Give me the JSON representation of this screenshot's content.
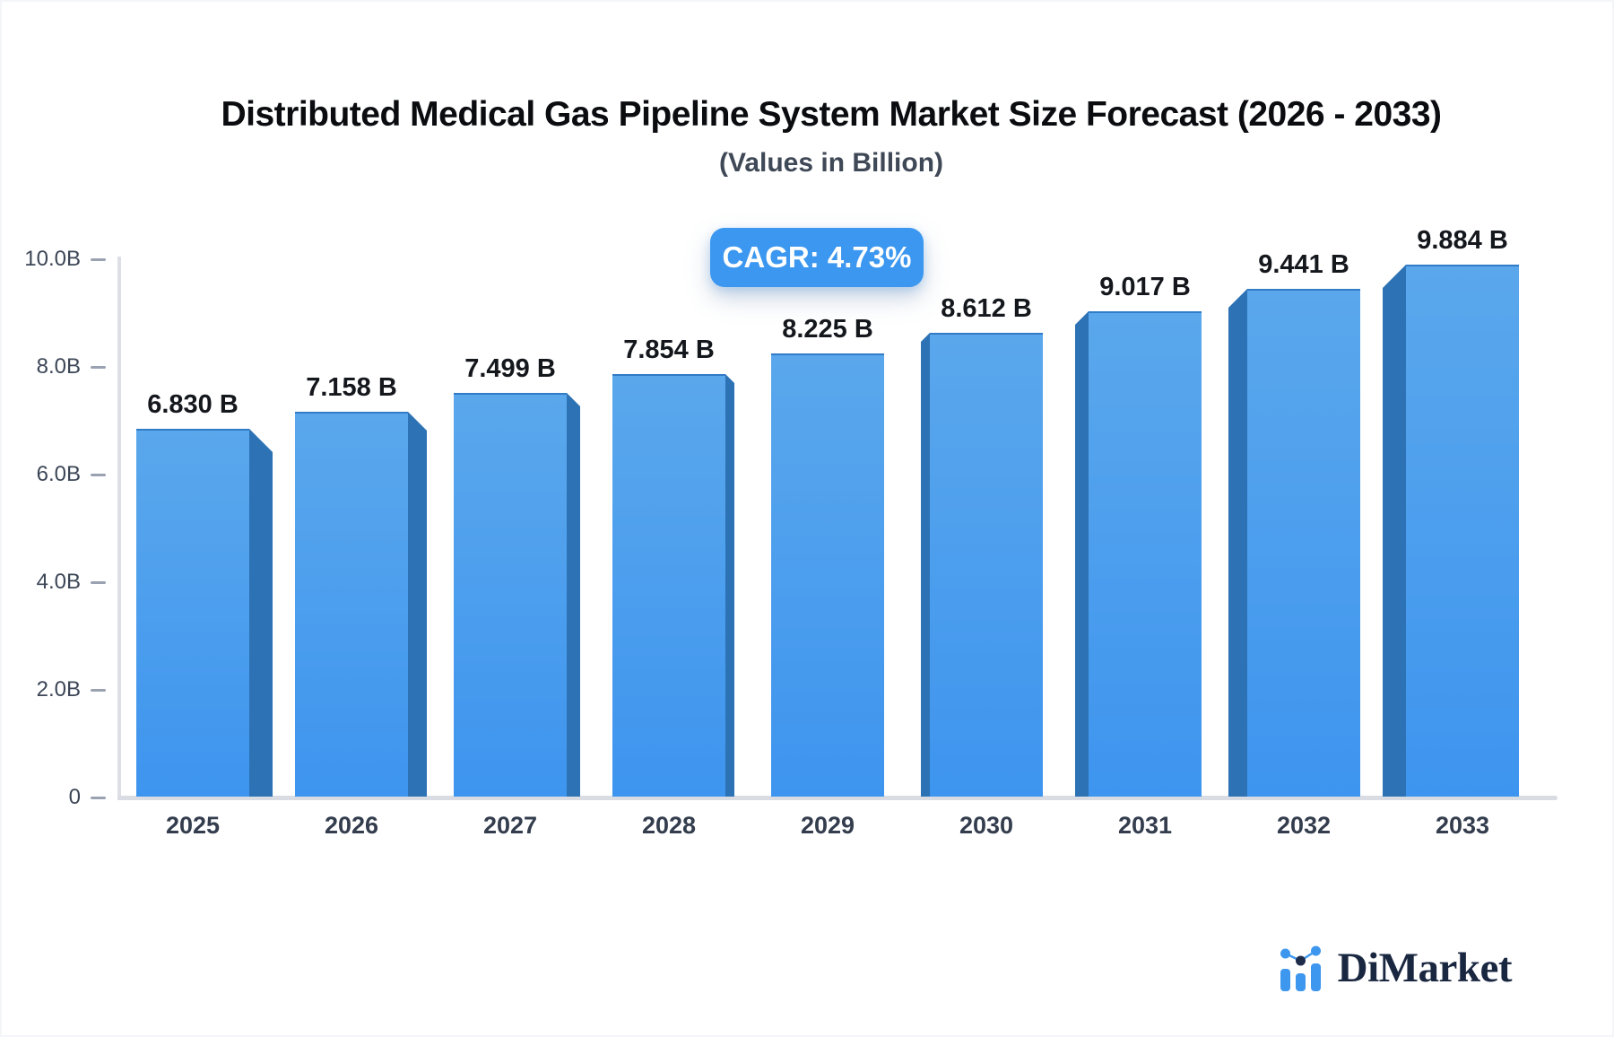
{
  "header": {
    "title": "Distributed Medical Gas Pipeline System Market Size Forecast (2026 - 2033)",
    "subtitle": "(Values in Billion)"
  },
  "badge": {
    "label": "CAGR: 4.73%"
  },
  "chart_data": {
    "type": "bar",
    "title": "Distributed Medical Gas Pipeline System Market Size Forecast (2026 - 2033)",
    "subtitle": "(Values in Billion)",
    "annotation": "CAGR: 4.73%",
    "categories": [
      "2025",
      "2026",
      "2027",
      "2028",
      "2029",
      "2030",
      "2031",
      "2032",
      "2033"
    ],
    "values": [
      6.83,
      7.158,
      7.499,
      7.854,
      8.225,
      8.612,
      9.017,
      9.441,
      9.884
    ],
    "bar_labels": [
      "6.830 B",
      "7.158 B",
      "7.499 B",
      "7.854 B",
      "8.225 B",
      "8.612 B",
      "9.017 B",
      "9.441 B",
      "9.884 B"
    ],
    "ylim": [
      0,
      10
    ],
    "yticks": [
      {
        "value": 0,
        "label": "0"
      },
      {
        "value": 2,
        "label": "2.0B"
      },
      {
        "value": 4,
        "label": "4.0B"
      },
      {
        "value": 6,
        "label": "6.0B"
      },
      {
        "value": 8,
        "label": "8.0B"
      },
      {
        "value": 10,
        "label": "10.0B"
      }
    ],
    "grid": false,
    "legend": "none",
    "colors": {
      "bar_face_top": "#5aa7ec",
      "bar_face_bottom": "#3e95ef",
      "bar_side": "#2c72b4",
      "badge_bg": "#3b97ef",
      "axis": "#d9dce3",
      "tick": "#9aa2b1"
    }
  },
  "logo": {
    "text": "DiMarket",
    "icon": "mini-bar-chart-icon"
  }
}
